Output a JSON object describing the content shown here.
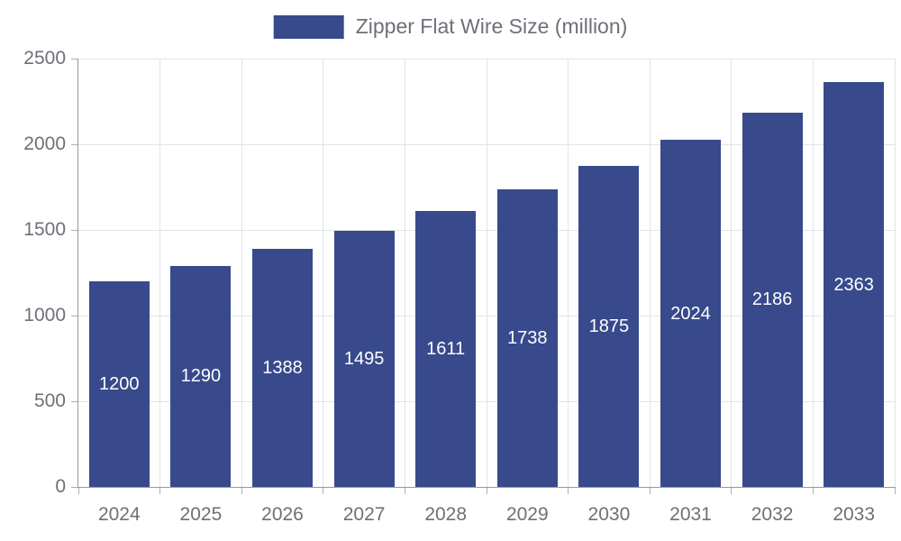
{
  "legend": {
    "label": "Zipper Flat Wire Size (million)"
  },
  "chart_data": {
    "type": "bar",
    "title": "Zipper Flat Wire Size (million)",
    "categories": [
      "2024",
      "2025",
      "2026",
      "2027",
      "2028",
      "2029",
      "2030",
      "2031",
      "2032",
      "2033"
    ],
    "values": [
      1200,
      1290,
      1388,
      1495,
      1611,
      1738,
      1875,
      2024,
      2186,
      2363
    ],
    "xlabel": "",
    "ylabel": "",
    "ylim": [
      0,
      2500
    ],
    "yticks": [
      0,
      500,
      1000,
      1500,
      2000,
      2500
    ],
    "grid": true,
    "legend_position": "top-center",
    "value_labels": "inside-center",
    "colors": {
      "bar": "#384A8C",
      "value_label": "#FFFFFF",
      "axis_text": "#6E7079",
      "grid_line": "#E0E3EA",
      "axis_line": "#96989D",
      "tick": "#ABAEB5",
      "background": "#FFFFFF"
    }
  }
}
